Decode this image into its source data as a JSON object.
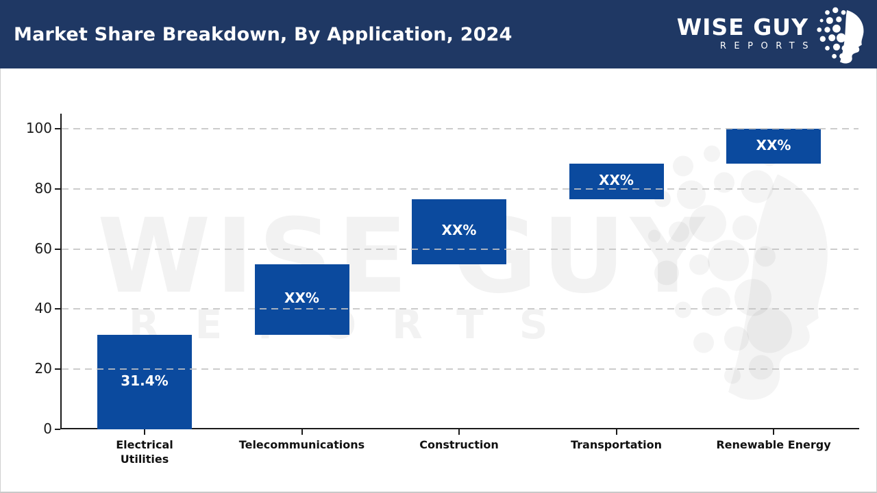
{
  "header": {
    "title": "Market Share Breakdown, By Application, 2024",
    "logo": {
      "line1": "WISE GUY",
      "line2": "REPORTS"
    }
  },
  "watermark": {
    "line1": "WISE GUY",
    "line2": "REPORTS"
  },
  "colors": {
    "header_bg": "#1f3864",
    "bar": "#0b4a9e",
    "grid": "#c3c3c3",
    "axis": "#1a1a1a",
    "bar_label": "#ffffff"
  },
  "chart_data": {
    "type": "bar",
    "subtype": "waterfall",
    "title": "Market Share Breakdown, By Application, 2024",
    "categories": [
      "Electrical Utilities",
      "Telecommunications",
      "Construction",
      "Transportation",
      "Renewable Energy"
    ],
    "category_lines": [
      [
        "Electrical",
        "Utilities"
      ],
      [
        "Telecommunications"
      ],
      [
        "Construction"
      ],
      [
        "Transportation"
      ],
      [
        "Renewable Energy"
      ]
    ],
    "segments": [
      {
        "category": "Electrical Utilities",
        "start": 0,
        "end": 31.4,
        "label": "31.4%"
      },
      {
        "category": "Telecommunications",
        "start": 31.4,
        "end": 55.0,
        "label": "XX%"
      },
      {
        "category": "Construction",
        "start": 55.0,
        "end": 76.6,
        "label": "XX%"
      },
      {
        "category": "Transportation",
        "start": 76.6,
        "end": 88.3,
        "label": "XX%"
      },
      {
        "category": "Renewable Energy",
        "start": 88.3,
        "end": 100,
        "label": "XX%"
      }
    ],
    "y_ticks": [
      0,
      20,
      40,
      60,
      80,
      100
    ],
    "ylim": [
      0,
      100
    ],
    "xlabel": "",
    "ylabel": "",
    "grid": "dashed-horizontal",
    "legend": "none"
  }
}
